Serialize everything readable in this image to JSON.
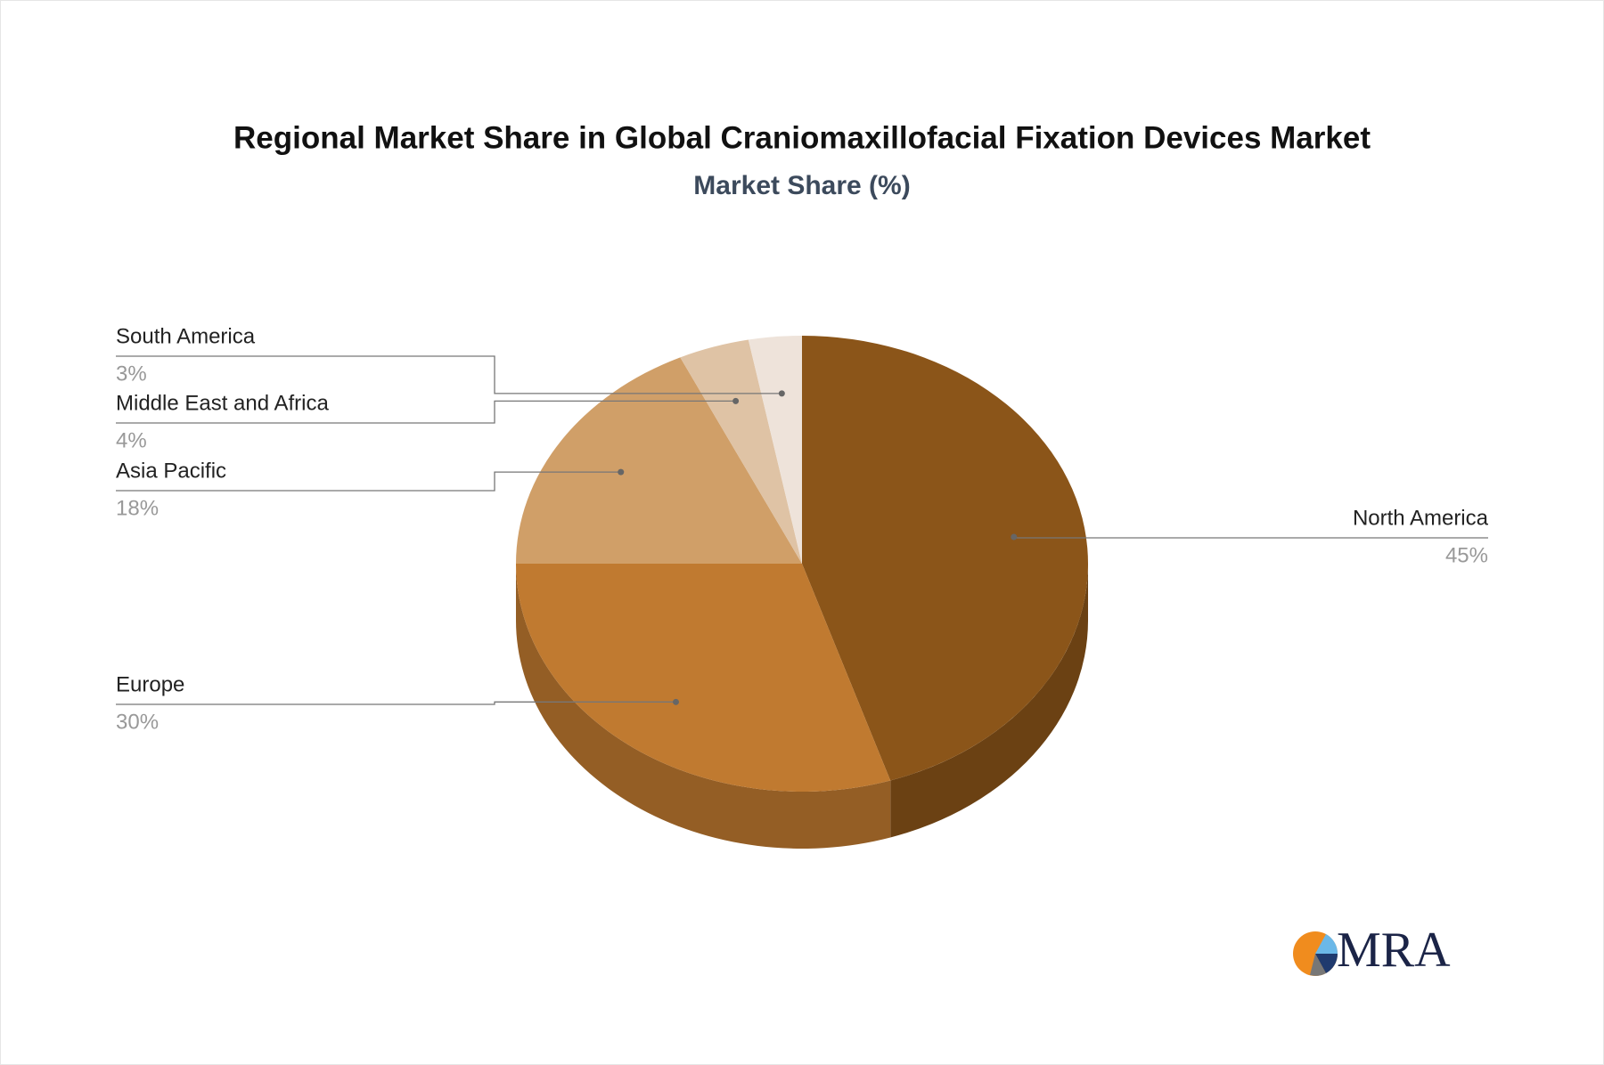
{
  "chart_data": {
    "type": "pie3d",
    "title": "Regional Market Share in Global Craniomaxillofacial Fixation Devices Market",
    "subtitle": "Market Share (%)",
    "categories": [
      "North America",
      "Europe",
      "Asia Pacific",
      "Middle East and Africa",
      "South America"
    ],
    "values": [
      45,
      30,
      18,
      4,
      3
    ],
    "value_labels": [
      "45%",
      "30%",
      "18%",
      "4%",
      "3%"
    ],
    "colors": [
      "#8b5519",
      "#c07a30",
      "#d09f68",
      "#dfc3a5",
      "#eee3da"
    ]
  },
  "logo": {
    "text": "MRA"
  }
}
